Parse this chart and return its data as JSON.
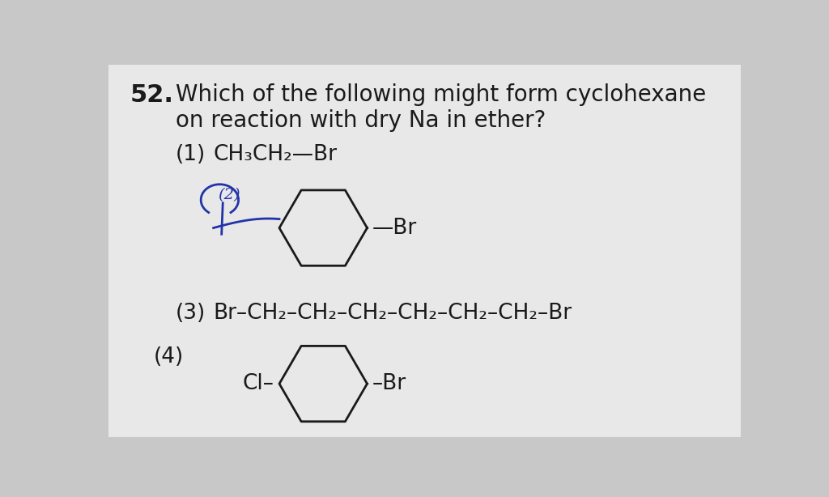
{
  "background_color": "#c8c8c8",
  "paper_color": "#e8e8e8",
  "text_color": "#1a1a1a",
  "title_number": "52.",
  "title_text_line1": "Which of the following might form cyclohexane",
  "title_text_line2": "on reaction with dry Na in ether?",
  "option1_label": "(1)",
  "option1_text": "CH₃CH₂—Br",
  "option2_label": "(2)",
  "option3_label": "(3)",
  "option3_text": "Br–CH₂–CH₂–CH₂–CH₂–CH₂–CH₂–Br",
  "option4_label": "(4)",
  "option4_cl": "Cl–",
  "option4_br": "–Br",
  "font_size_title": 20,
  "font_size_options": 19,
  "font_size_number": 22,
  "handwritten_color": "#2233aa"
}
